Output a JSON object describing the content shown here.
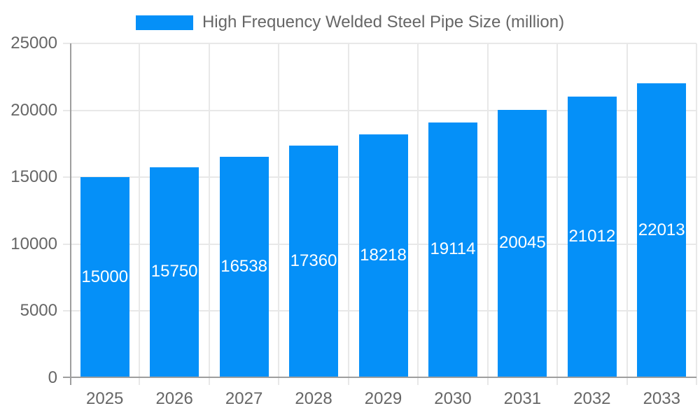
{
  "legend": {
    "label": "High Frequency Welded Steel Pipe Size (million)"
  },
  "chart_data": {
    "type": "bar",
    "title": "High Frequency Welded Steel Pipe Size (million)",
    "categories": [
      "2025",
      "2026",
      "2027",
      "2028",
      "2029",
      "2030",
      "2031",
      "2032",
      "2033"
    ],
    "series": [
      {
        "name": "High Frequency Welded Steel Pipe Size (million)",
        "values": [
          15000,
          15750,
          16538,
          17360,
          18218,
          19114,
          20045,
          21012,
          22013
        ]
      }
    ],
    "xlabel": "",
    "ylabel": "",
    "ylim": [
      0,
      25000
    ],
    "y_ticks": [
      0,
      5000,
      10000,
      15000,
      20000,
      25000
    ],
    "grid": true,
    "legend_position": "top-center",
    "bar_value_labels_inside": true,
    "colors": {
      "bar": "#0590F8",
      "bar_label": "#ffffff",
      "axis_text": "#666666",
      "grid_line": "#e8e8e8",
      "axis_line": "#9e9e9e",
      "background": "#ffffff"
    }
  }
}
